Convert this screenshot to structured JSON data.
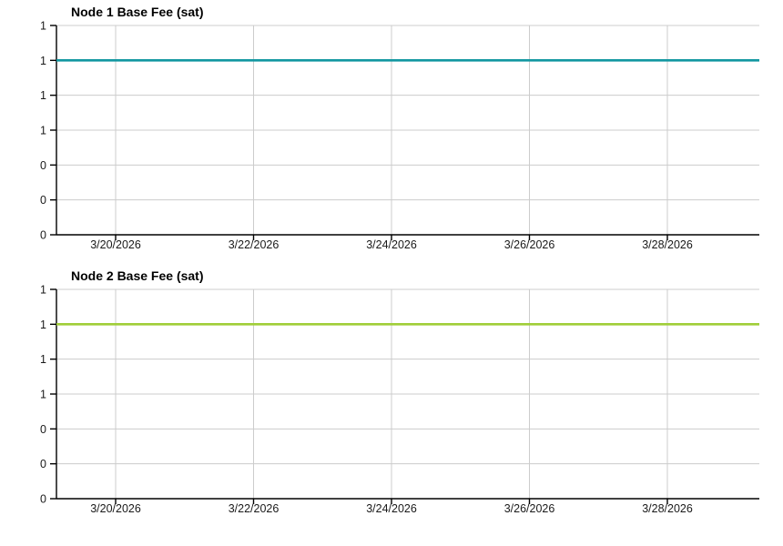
{
  "page": {
    "background_color": "#ffffff",
    "grid_color": "#cccccc",
    "axis_color": "#000000",
    "label_color": "#1a1a1a"
  },
  "chart_data": [
    {
      "type": "line",
      "title": "Node 1 Base Fee (sat)",
      "ylabel": "",
      "xlabel": "",
      "line_color": "#1297a1",
      "x": [
        "3/19/2026",
        "3/20/2026",
        "3/21/2026",
        "3/22/2026",
        "3/23/2026",
        "3/24/2026",
        "3/25/2026",
        "3/26/2026",
        "3/27/2026",
        "3/28/2026",
        "3/29/2026"
      ],
      "series": [
        {
          "name": "Node 1 Base Fee",
          "values": [
            1,
            1,
            1,
            1,
            1,
            1,
            1,
            1,
            1,
            1,
            1
          ]
        }
      ],
      "ylim": [
        0,
        1.2
      ],
      "y_ticks": [
        1.2,
        1.0,
        0.8,
        0.6,
        0.4,
        0.2,
        0
      ],
      "y_tick_labels": [
        "1",
        "1",
        "1",
        "1",
        "0",
        "0",
        "0"
      ],
      "x_tick_labels": [
        "3/20/2026",
        "3/22/2026",
        "3/24/2026",
        "3/26/2026",
        "3/28/2026"
      ],
      "grid": true,
      "legend": "none",
      "constant_value": 1
    },
    {
      "type": "line",
      "title": "Node 2 Base Fee (sat)",
      "ylabel": "",
      "xlabel": "",
      "line_color": "#a0ce39",
      "x": [
        "3/19/2026",
        "3/20/2026",
        "3/21/2026",
        "3/22/2026",
        "3/23/2026",
        "3/24/2026",
        "3/25/2026",
        "3/26/2026",
        "3/27/2026",
        "3/28/2026",
        "3/29/2026"
      ],
      "series": [
        {
          "name": "Node 2 Base Fee",
          "values": [
            1,
            1,
            1,
            1,
            1,
            1,
            1,
            1,
            1,
            1,
            1
          ]
        }
      ],
      "ylim": [
        0,
        1.2
      ],
      "y_ticks": [
        1.2,
        1.0,
        0.8,
        0.6,
        0.4,
        0.2,
        0
      ],
      "y_tick_labels": [
        "1",
        "1",
        "1",
        "1",
        "0",
        "0",
        "0"
      ],
      "x_tick_labels": [
        "3/20/2026",
        "3/22/2026",
        "3/24/2026",
        "3/26/2026",
        "3/28/2026"
      ],
      "grid": true,
      "legend": "none",
      "constant_value": 1
    }
  ]
}
